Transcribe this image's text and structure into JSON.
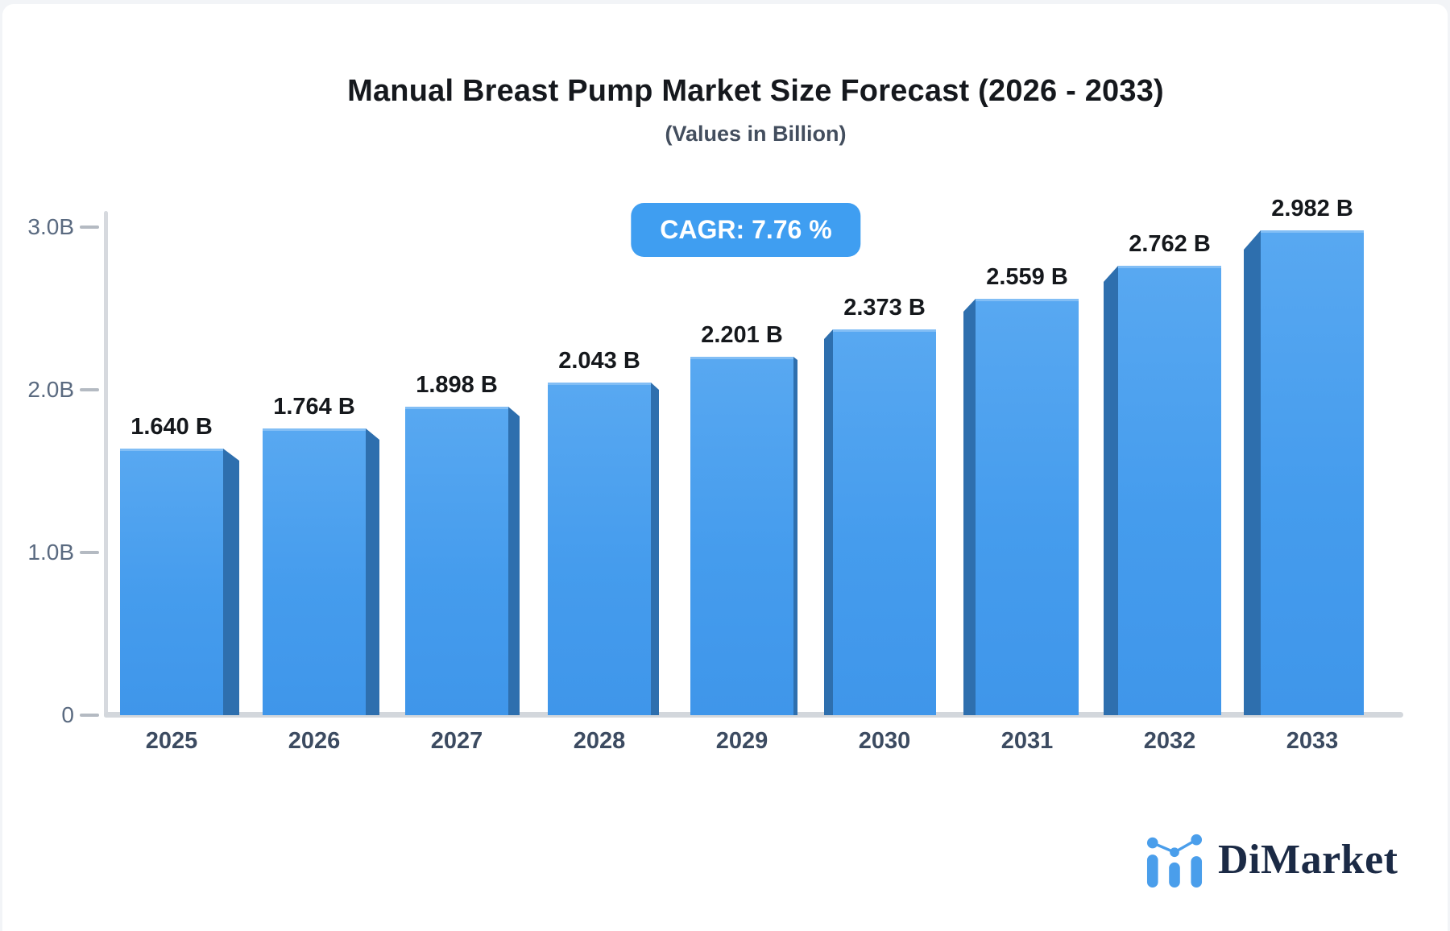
{
  "header": {
    "title": "Manual Breast Pump Market Size Forecast (2026 - 2033)",
    "subtitle": "(Values in Billion)"
  },
  "badge": {
    "label": "CAGR: 7.76 %"
  },
  "chart_data": {
    "type": "bar",
    "title": "Manual Breast Pump Market Size Forecast (2026 - 2033)",
    "subtitle": "(Values in Billion)",
    "categories": [
      "2025",
      "2026",
      "2027",
      "2028",
      "2029",
      "2030",
      "2031",
      "2032",
      "2033"
    ],
    "values": [
      1.64,
      1.764,
      1.898,
      2.043,
      2.201,
      2.373,
      2.559,
      2.762,
      2.982
    ],
    "value_labels": [
      "1.640 B",
      "1.764 B",
      "1.898 B",
      "2.043 B",
      "2.201 B",
      "2.373 B",
      "2.559 B",
      "2.762 B",
      "2.982 B"
    ],
    "xlabel": "",
    "ylabel": "",
    "ylim": [
      0,
      3.0
    ],
    "yticks": [
      {
        "value": 0,
        "label": "0"
      },
      {
        "value": 1.0,
        "label": "1.0B"
      },
      {
        "value": 2.0,
        "label": "2.0B"
      },
      {
        "value": 3.0,
        "label": "3.0B"
      }
    ],
    "grid": false,
    "legend": false,
    "cagr": "7.76 %",
    "colors": {
      "bar_front_top": "#58a8f1",
      "bar_front_bottom": "#3f96ea",
      "bar_top_edge": "#82bef5",
      "bar_side": "#2e6fae",
      "axis_line": "#d3d7dc",
      "tick_dash": "#b4bac2",
      "y_label": "#5a6a80",
      "x_label": "#3c4b61",
      "value_label": "#15181c",
      "badge_bg": "#3f9ef1",
      "badge_text": "#ffffff",
      "logo_blue": "#4a9eeb",
      "logo_navy": "#1b2a45"
    }
  },
  "logo": {
    "text": "DiMarket"
  }
}
